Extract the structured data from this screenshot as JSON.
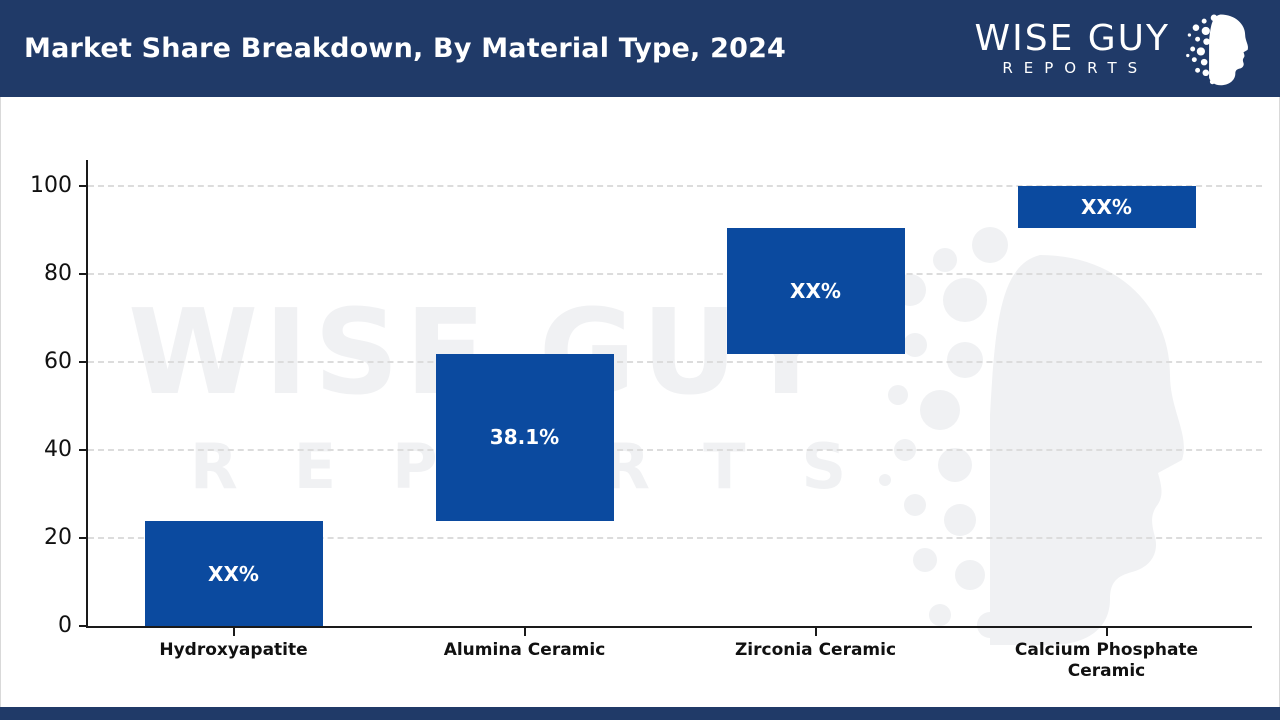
{
  "header": {
    "title": "Market Share Breakdown, By Material Type, 2024",
    "bg_color": "#203a68",
    "logo": {
      "line1": "WISE GUY",
      "line2": "REPORTS"
    }
  },
  "watermark": {
    "line1": "WISE GUY",
    "line2": "REPORTS"
  },
  "chart_data": {
    "type": "bar",
    "variant": "floating-waterfall",
    "title": "Market Share Breakdown, By Material Type, 2024",
    "categories": [
      "Hydroxyapatite",
      "Alumina Ceramic",
      "Zirconia Ceramic",
      "Calcium Phosphate Ceramic"
    ],
    "segments": [
      {
        "category": "Hydroxyapatite",
        "label": "XX%",
        "start": 0,
        "end": 23.8
      },
      {
        "category": "Alumina Ceramic",
        "label": "38.1%",
        "start": 23.8,
        "end": 61.9
      },
      {
        "category": "Zirconia Ceramic",
        "label": "XX%",
        "start": 61.9,
        "end": 90.5
      },
      {
        "category": "Calcium Phosphate Ceramic",
        "label": "XX%",
        "start": 90.5,
        "end": 100
      }
    ],
    "yticks": [
      0,
      20,
      40,
      60,
      80,
      100
    ],
    "ylim": [
      0,
      105.9
    ],
    "bar_color": "#0b4a9f",
    "grid": "horizontal-dashed",
    "legend": "none",
    "xlabel": "",
    "ylabel": ""
  },
  "footer": {
    "bg_color": "#203a68"
  }
}
